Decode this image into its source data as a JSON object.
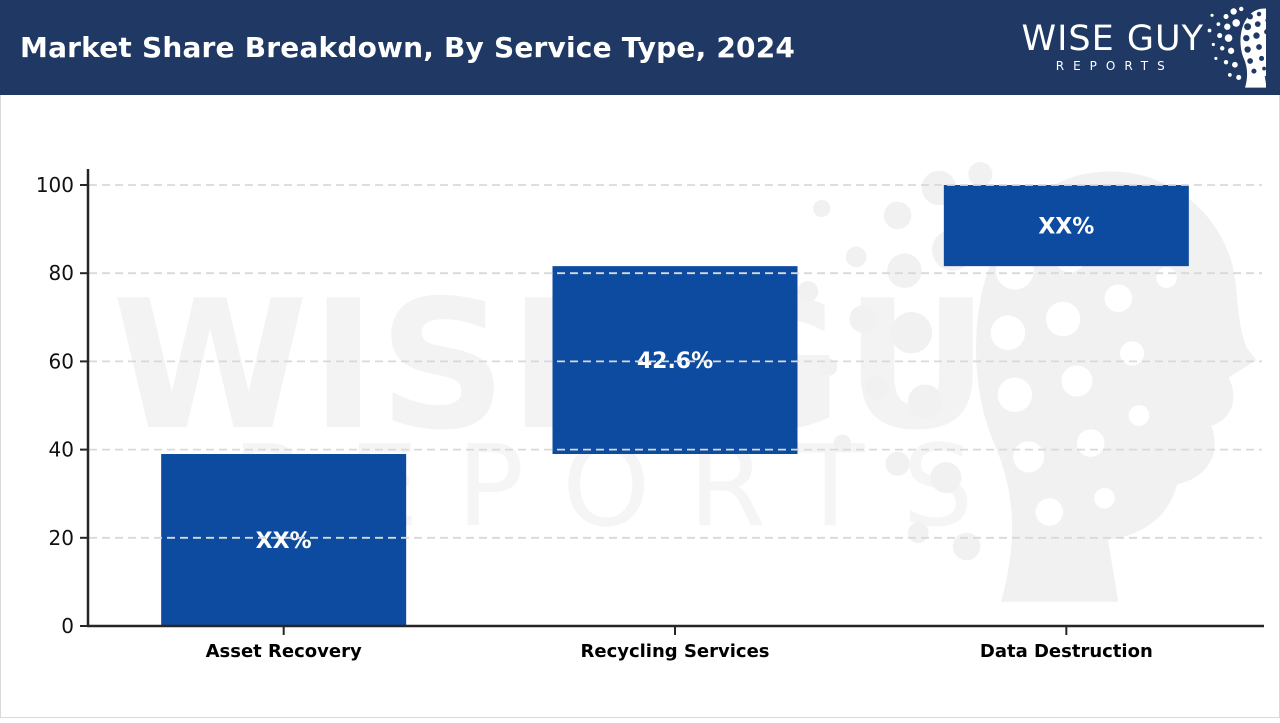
{
  "header": {
    "title": "Market Share Breakdown, By Service Type, 2024",
    "logo": {
      "name": "WISE GUY",
      "sub": "REPORTS"
    }
  },
  "watermark": {
    "big": "WISE GUY",
    "small": "REPORTS"
  },
  "chart_data": {
    "type": "bar",
    "subtype": "waterfall",
    "title": "Market Share Breakdown, By Service Type, 2024",
    "categories": [
      "Asset Recovery",
      "Recycling Services",
      "Data Destruction"
    ],
    "bars": [
      {
        "category": "Asset Recovery",
        "start": 0,
        "end": 39,
        "label": "XX%"
      },
      {
        "category": "Recycling Services",
        "start": 39,
        "end": 81.6,
        "label": "42.6%"
      },
      {
        "category": "Data Destruction",
        "start": 81.6,
        "end": 100,
        "label": "XX%"
      }
    ],
    "xlabel": "",
    "ylabel": "",
    "ylim": [
      0,
      104
    ],
    "yticks": [
      0,
      20,
      40,
      60,
      80,
      100
    ],
    "grid": "dashed-horizontal-over-bars",
    "legend": "none",
    "bar_color": "#0c4ba0",
    "label_color": "#ffffff"
  },
  "colors": {
    "header_bg": "#1f3864",
    "bar_blue": "#0c4ba0",
    "grid": "#d9d9d9",
    "axis": "#262626",
    "watermark": "#f3f3f3",
    "page_border": "#d9d9d9"
  }
}
